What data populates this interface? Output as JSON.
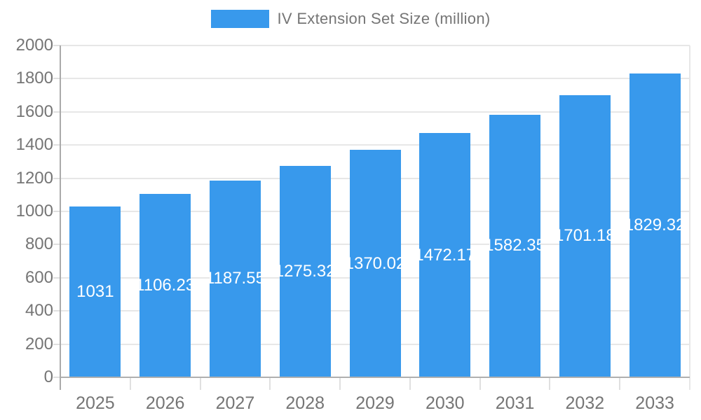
{
  "legend": {
    "label": "IV Extension Set Size (million)",
    "swatch_icon": "legend-swatch",
    "swatch_color": "#3899EC"
  },
  "colors": {
    "bar": "#3899EC",
    "bar_label_text": "#FFFFFF",
    "axis_text": "#757575",
    "gridline": "#E7E7E7",
    "axis_line": "#AAAAAA",
    "baseline": "#B0B0B0"
  },
  "chart_data": {
    "type": "bar",
    "title": "",
    "xlabel": "",
    "ylabel": "",
    "categories": [
      "2025",
      "2026",
      "2027",
      "2028",
      "2029",
      "2030",
      "2031",
      "2032",
      "2033"
    ],
    "series": [
      {
        "name": "IV Extension Set Size (million)",
        "values": [
          1031,
          1106.23,
          1187.55,
          1275.32,
          1370.02,
          1472.17,
          1582.35,
          1701.18,
          1829.32
        ],
        "data_labels": [
          "1031",
          "1106.23",
          "1187.55",
          "1275.32",
          "1370.02",
          "1472.17",
          "1582.35",
          "1701.18",
          "1829.32"
        ]
      }
    ],
    "ylim": [
      0,
      2000
    ],
    "ytick_step": 200,
    "ytick_labels": [
      "0",
      "200",
      "400",
      "600",
      "800",
      "1000",
      "1200",
      "1400",
      "1600",
      "1800",
      "2000"
    ],
    "grid": true,
    "legend_position": "top-center",
    "data_labels_visible": true,
    "data_labels_position": "center-of-bar"
  }
}
